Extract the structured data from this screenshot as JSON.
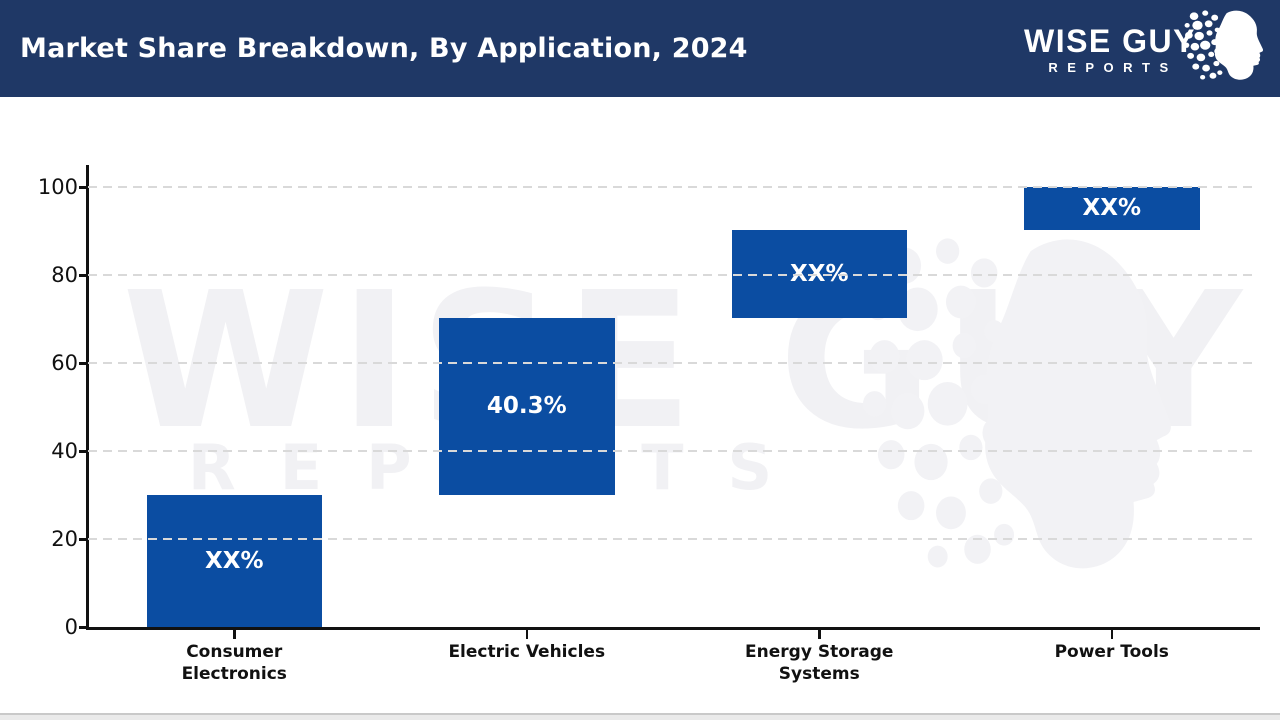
{
  "header": {
    "title": "Market Share Breakdown, By Application, 2024",
    "logo_line1": "WISE GUY",
    "logo_line2": "REPORTS"
  },
  "watermark": {
    "line1": "WISE GUY",
    "line2": "REPORTS"
  },
  "colors": {
    "header_bg": "#1f3866",
    "bar": "#0b4da2",
    "bar_label": "#ffffff",
    "gridline": "#d9d9d9",
    "axis": "#111111",
    "watermark": "#f1f1f4"
  },
  "chart_data": {
    "type": "bar",
    "variant": "floating-waterfall",
    "title": "Market Share Breakdown, By Application, 2024",
    "categories": [
      "Consumer\nElectronics",
      "Electric Vehicles",
      "Energy Storage\nSystems",
      "Power Tools"
    ],
    "segments": [
      {
        "category": "Consumer Electronics",
        "start": 0,
        "end": 30,
        "label": "XX%"
      },
      {
        "category": "Electric Vehicles",
        "start": 30,
        "end": 70.3,
        "label": "40.3%"
      },
      {
        "category": "Energy Storage Systems",
        "start": 70.3,
        "end": 90.3,
        "label": "XX%"
      },
      {
        "category": "Power Tools",
        "start": 90.3,
        "end": 100,
        "label": "XX%"
      }
    ],
    "yticks": [
      0,
      20,
      40,
      60,
      80,
      100
    ],
    "ylim": [
      0,
      105
    ],
    "xlabel": "",
    "ylabel": "",
    "grid": "horizontal-dashed",
    "legend": "none"
  }
}
